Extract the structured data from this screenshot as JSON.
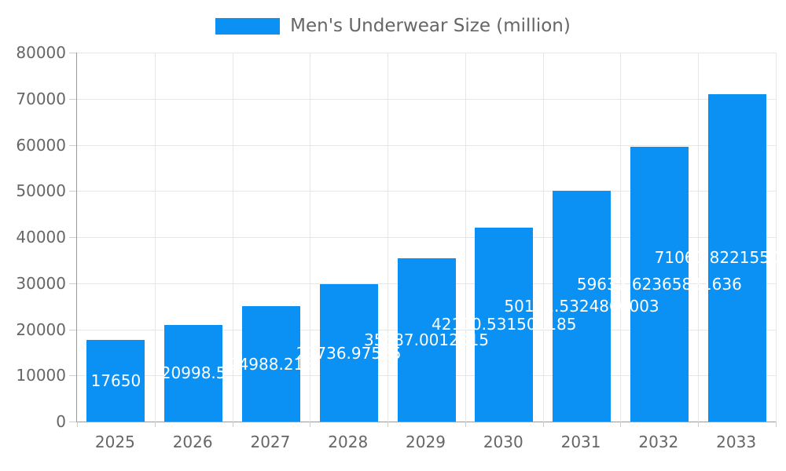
{
  "legend": {
    "label": "Men's Underwear Size (million)"
  },
  "colors": {
    "bar": "#0a91f3",
    "bar_label_text": "#ffffff",
    "grid": "#e6e6e6",
    "axis": "#999999",
    "tick": "#cccccc",
    "axis_text": "#666666",
    "background": "#ffffff"
  },
  "chart_data": {
    "type": "bar",
    "title": "",
    "series_name": "Men's Underwear Size (million)",
    "legend_position": "top",
    "grid": true,
    "categories": [
      "2025",
      "2026",
      "2027",
      "2028",
      "2029",
      "2030",
      "2031",
      "2032",
      "2033"
    ],
    "values": [
      17650,
      20998.5,
      24988.215,
      29736.97585,
      35387.0012615,
      42110.531501185,
      50111.5324800003,
      59632.62365821636,
      71060.82215501636
    ],
    "value_labels": [
      "17650",
      "20998.5",
      "24988.215",
      "29736.97585",
      "35387.0012615",
      "42110.531501185",
      "50111.5324800003",
      "59632.62365821636",
      "71060.82215501636"
    ],
    "xlabel": "",
    "ylabel": "",
    "ylim": [
      0,
      80000
    ],
    "y_ticks": [
      0,
      10000,
      20000,
      30000,
      40000,
      50000,
      60000,
      70000,
      80000
    ],
    "y_tick_labels": [
      "0",
      "10000",
      "20000",
      "30000",
      "40000",
      "50000",
      "60000",
      "70000",
      "80000"
    ]
  }
}
